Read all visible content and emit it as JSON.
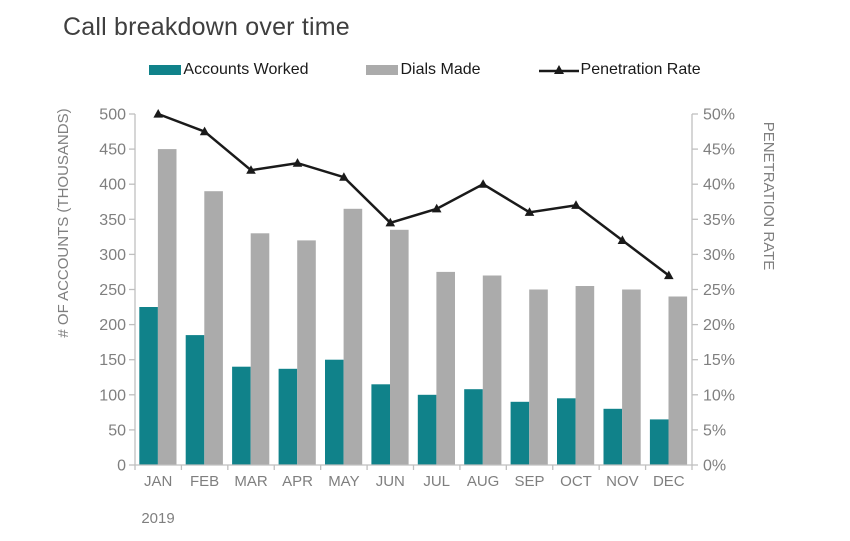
{
  "title": "Call breakdown over time",
  "legend": [
    {
      "label": "Accounts Worked",
      "type": "bar-swatch",
      "color": "#10828A"
    },
    {
      "label": "Dials Made",
      "type": "bar-swatch",
      "color": "#ABABAB"
    },
    {
      "label": "Penetration Rate",
      "type": "line-marker",
      "color": "#1A1A1A"
    }
  ],
  "chart_data": {
    "type": "bar",
    "subtype": "grouped-bars-with-line-overlay",
    "categories": [
      "JAN",
      "FEB",
      "MAR",
      "APR",
      "MAY",
      "JUN",
      "JUL",
      "AUG",
      "SEP",
      "OCT",
      "NOV",
      "DEC"
    ],
    "year_label": "2019",
    "series": [
      {
        "name": "Accounts Worked",
        "type": "bar",
        "axis": "left",
        "color": "#10828A",
        "values": [
          225,
          185,
          140,
          137,
          150,
          115,
          100,
          108,
          90,
          95,
          80,
          65
        ]
      },
      {
        "name": "Dials Made",
        "type": "bar",
        "axis": "left",
        "color": "#ABABAB",
        "values": [
          450,
          390,
          330,
          320,
          365,
          335,
          275,
          270,
          250,
          255,
          250,
          240
        ]
      },
      {
        "name": "Penetration Rate",
        "type": "line",
        "axis": "right",
        "color": "#1A1A1A",
        "marker": "triangle-up",
        "values_percent": [
          50,
          47.5,
          42,
          43,
          41,
          34.5,
          36.5,
          40,
          36,
          37,
          32,
          27
        ]
      }
    ],
    "left_axis": {
      "label": "# OF ACCOUNTS (THOUSANDS)",
      "min": 0,
      "max": 500,
      "step": 50
    },
    "right_axis": {
      "label": "PENETRATION RATE",
      "min": 0,
      "max": 50,
      "step": 5,
      "suffix": "%"
    },
    "grid": false,
    "legend_position": "top",
    "style": {
      "axis_line_color": "#BFBFBF",
      "tick_text_color": "#7F7F7F",
      "line_color": "#1A1A1A"
    }
  }
}
